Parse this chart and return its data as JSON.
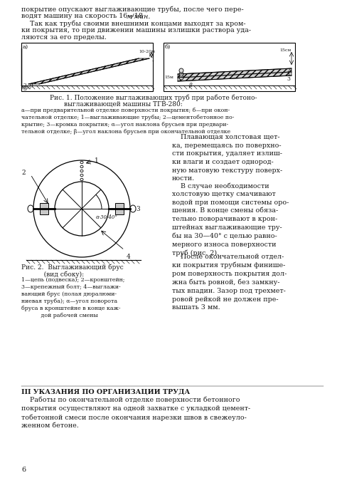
{
  "bg_color": "#ffffff",
  "page_color": "#ffffff",
  "text_color": "#1a1a1a",
  "para1_line1": "покрытие опускают выглаживающие трубы, после чего пере-",
  "para1_line2_normal": "водят машину на скорость 16—18 ",
  "para1_line2_italic": "м/мин.",
  "para2_line1": "    Так как трубы своими внешними концами выходят за кром-",
  "para2_line2": "ки покрытия, то при движении машины излишки раствора уда-",
  "para2_line3": "ляются за его пределы.",
  "fig1_cap1": "Рис. 1. Положение выглаживающих труб при работе бетоно-",
  "fig1_cap2": "выглаживающей машины ТГВ-280:",
  "fig1_sub": "а—при предварительной отделке поверхности покрытия; б—при окон-\nчательной отделке; 1—выглаживающие трубы; 2—цементобетонное по-\nкрытие; 3—кромка покрытия; α—угол наклона брусьев при предвари-\nтельной отделке; β—угол наклона брусьев при окончательной отделке",
  "right_text1": "    Плавающая холстовая щет-\nка, перемещаясь по поверхно-\nсти покрытия, удаляет излиш-\nки влаги и создает однород-\nную матовую текстуру поверх-\nности.",
  "right_text2": "    В случае необходимости\nхолстовую щетку смачивают\nводой при помощи системы оро-\nшения. В конце смены обяза-\nтельно поворачивают в крон-\nштейнах выглаживающие тру-\nбы на 30—40° с целью равно-\nмерного износа поверхности\nтруб (рис. 2).",
  "right_text3": "    После окончательной отдел-\nки покрытия трубным финише-\nром поверхность покрытия дол-\nжна быть ровной, без замкну-\nтых впадин. Зазор под трехмет-\nровой рейкой не должен пре-\nвышать 3 мм.",
  "fig2_cap1": "Рис. 2.  Выглаживающий брус",
  "fig2_cap2": "           (вид сбоку):",
  "fig2_sub": "1—цепь (подвеска); 2—кронштейн;\n3—крепежный болт; 4—выглажи-\nвающий брус (полая дюралюми-\nниевая труба); α—угол поворота\nбруса в кронштейне в конце каж-\n           дой рабочей смены",
  "sec_title": "III УКАЗАНИЯ ПО ОРГАНИЗАЦИИ ТРУДА",
  "sec_text": "    Работы по окончательной отделке поверхности бетонного\nпокрытия осуществляют на одной захватке с укладкой цемент-\nтобетонной смеси после окончания нарезки швов в свежеуло-\nженном бетоне.",
  "page_num": "6"
}
